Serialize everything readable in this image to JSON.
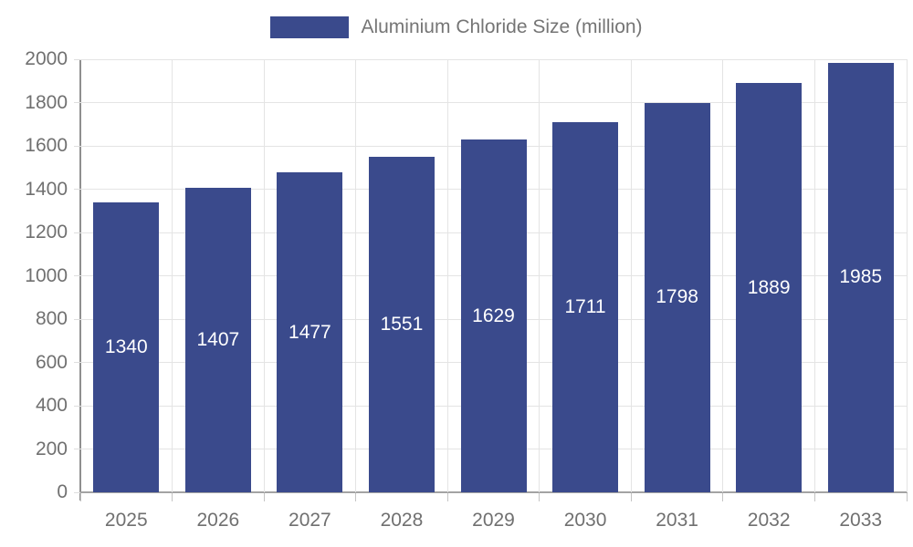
{
  "chart_data": {
    "type": "bar",
    "title": "",
    "legend": "Aluminium Chloride Size (million)",
    "legend_position": "top-center",
    "categories": [
      "2025",
      "2026",
      "2027",
      "2028",
      "2029",
      "2030",
      "2031",
      "2032",
      "2033"
    ],
    "series": [
      {
        "name": "Aluminium Chloride Size (million)",
        "values": [
          1340,
          1407,
          1477,
          1551,
          1629,
          1711,
          1798,
          1889,
          1985
        ]
      }
    ],
    "value_labels": [
      "1340",
      "1407",
      "1477",
      "1551",
      "1629",
      "1711",
      "1798",
      "1889",
      "1985"
    ],
    "xlabel": "",
    "ylabel": "",
    "ylim": [
      0,
      2000
    ],
    "ytick_step": 200,
    "ytick_labels": [
      "0",
      "200",
      "400",
      "600",
      "800",
      "1000",
      "1200",
      "1400",
      "1600",
      "1800",
      "2000"
    ],
    "grid": "on",
    "colors": {
      "bar": "#3a4a8c",
      "value_label": "#ffffff",
      "axis_text": "#707070",
      "legend_text": "#757575",
      "gridline": "#e4e4e4",
      "axis_line": "#8f8f8f"
    }
  }
}
